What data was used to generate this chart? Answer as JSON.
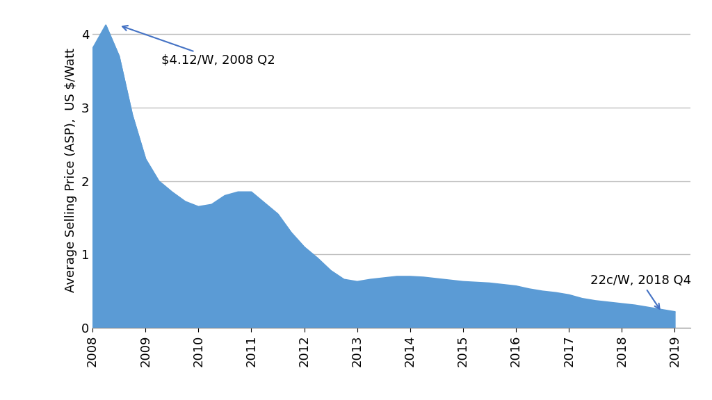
{
  "x": [
    2008.0,
    2008.25,
    2008.5,
    2008.75,
    2009.0,
    2009.25,
    2009.5,
    2009.75,
    2010.0,
    2010.25,
    2010.5,
    2010.75,
    2011.0,
    2011.25,
    2011.5,
    2011.75,
    2012.0,
    2012.25,
    2012.5,
    2012.75,
    2013.0,
    2013.25,
    2013.5,
    2013.75,
    2014.0,
    2014.25,
    2014.5,
    2014.75,
    2015.0,
    2015.25,
    2015.5,
    2015.75,
    2016.0,
    2016.25,
    2016.5,
    2016.75,
    2017.0,
    2017.25,
    2017.5,
    2017.75,
    2018.0,
    2018.25,
    2018.5,
    2018.75,
    2019.0
  ],
  "y": [
    3.8,
    4.12,
    3.7,
    2.9,
    2.3,
    2.0,
    1.85,
    1.72,
    1.65,
    1.68,
    1.8,
    1.85,
    1.85,
    1.7,
    1.55,
    1.3,
    1.1,
    0.95,
    0.78,
    0.66,
    0.63,
    0.66,
    0.68,
    0.7,
    0.7,
    0.69,
    0.67,
    0.65,
    0.63,
    0.62,
    0.61,
    0.59,
    0.57,
    0.53,
    0.5,
    0.48,
    0.45,
    0.4,
    0.37,
    0.35,
    0.33,
    0.31,
    0.28,
    0.25,
    0.22
  ],
  "fill_color": "#5B9BD5",
  "line_color": "#5B9BD5",
  "background_color": "#FFFFFF",
  "ylabel": "Average Selling Price (ASP),  US $/Watt",
  "ylabel_fontsize": 13,
  "tick_fontsize": 13,
  "annotation1_text": "$4.12/W, 2008 Q2",
  "annotation2_text": "22c/W, 2018 Q4",
  "annotation_fontsize": 13,
  "annotation_color": "#000000",
  "arrow_color": "#4472C4",
  "xlim": [
    2008.0,
    2019.3
  ],
  "ylim": [
    0,
    4.3
  ],
  "yticks": [
    0,
    1,
    2,
    3,
    4
  ],
  "xticks": [
    2008,
    2009,
    2010,
    2011,
    2012,
    2013,
    2014,
    2015,
    2016,
    2017,
    2018,
    2019
  ],
  "grid_color": "#C0C0C0",
  "grid_linewidth": 1.0
}
